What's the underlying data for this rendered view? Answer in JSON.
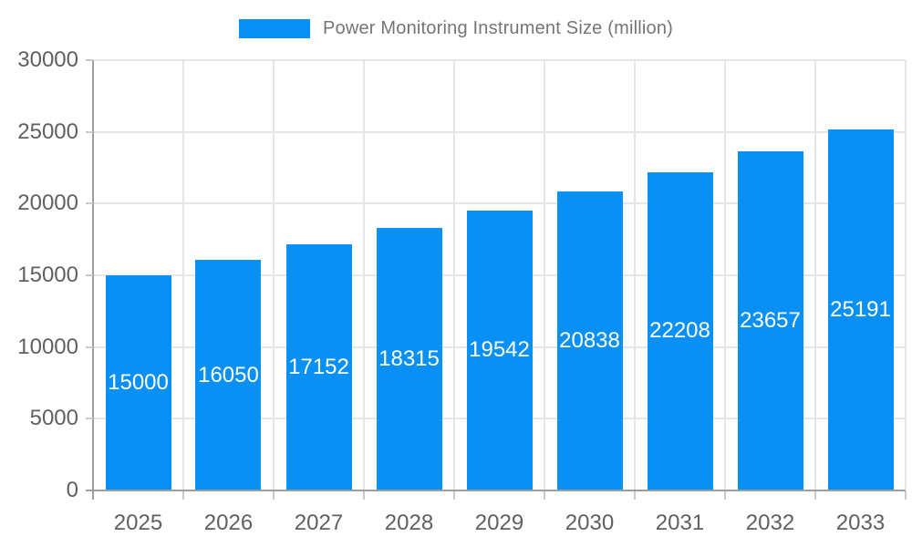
{
  "chart_data": {
    "type": "bar",
    "title": "Power Monitoring Instrument Size (million)",
    "categories": [
      "2025",
      "2026",
      "2027",
      "2028",
      "2029",
      "2030",
      "2031",
      "2032",
      "2033"
    ],
    "series": [
      {
        "name": "Power Monitoring Instrument Size (million)",
        "values": [
          15000,
          16050,
          17152,
          18315,
          19542,
          20838,
          22208,
          23657,
          25191
        ]
      }
    ],
    "bar_labels": [
      "15000",
      "16050",
      "17152",
      "18315",
      "19542",
      "20838",
      "22208",
      "23657",
      "25191"
    ],
    "xlabel": "",
    "ylabel": "",
    "ylim": [
      0,
      30000
    ],
    "ytick_step": 5000,
    "yticks": [
      0,
      5000,
      10000,
      15000,
      20000,
      25000,
      30000
    ],
    "grid": true,
    "legend_position": "top",
    "value_label_position": "center-inside",
    "colors": {
      "bar": "#0990f4",
      "bar_label": "#ffffff",
      "grid": "#e6e6e6",
      "axis": "#9e9e9e",
      "tick": "#c9c9c9",
      "axis_text": "#5f6063",
      "title_text": "#757575",
      "background": "#ffffff"
    }
  }
}
